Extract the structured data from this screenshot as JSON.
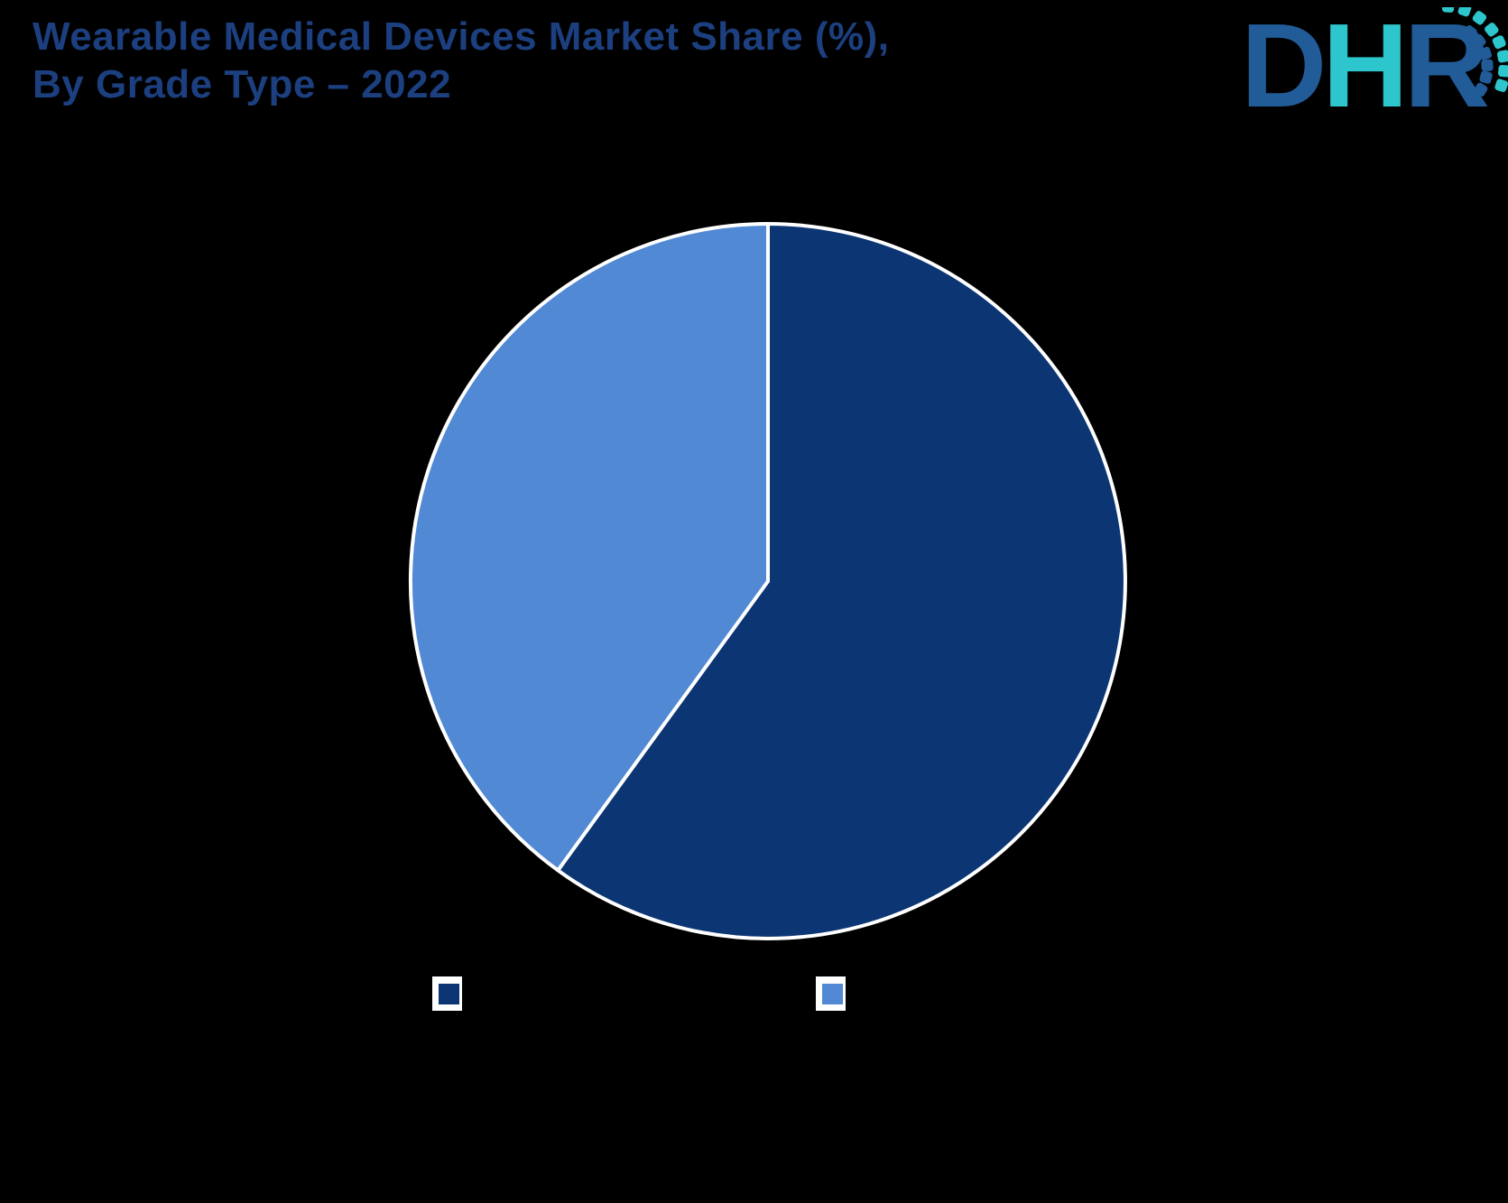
{
  "page": {
    "background": "#000000"
  },
  "header": {
    "title_line1": "Wearable Medical Devices Market Share (%),",
    "title_line2": "By Grade Type – 2022",
    "title_color": "#1c3f7f"
  },
  "logo": {
    "text": "DHR",
    "letters": [
      {
        "char": "D",
        "color": "#215c99"
      },
      {
        "char": "H",
        "color": "#2ec6cd"
      },
      {
        "char": "R",
        "color": "#215c99"
      }
    ],
    "dot_colors": {
      "outer": "#2ec6cd",
      "inner": "#215c99"
    },
    "dots": [
      {
        "ring": "outer",
        "angle": 4
      },
      {
        "ring": "outer",
        "angle": 20
      },
      {
        "ring": "outer",
        "angle": 36
      },
      {
        "ring": "outer",
        "angle": 52
      },
      {
        "ring": "outer",
        "angle": 66
      },
      {
        "ring": "outer",
        "angle": 80
      },
      {
        "ring": "outer",
        "angle": 94
      },
      {
        "ring": "outer",
        "angle": 108
      },
      {
        "ring": "inner",
        "angle": 37
      },
      {
        "ring": "inner",
        "angle": 54
      },
      {
        "ring": "inner",
        "angle": 72
      },
      {
        "ring": "inner",
        "angle": 88
      },
      {
        "ring": "inner",
        "angle": 104
      },
      {
        "ring": "inner",
        "angle": 122
      }
    ]
  },
  "chart_data": {
    "type": "pie",
    "title": "Wearable Medical Devices Market Share (%), By Grade Type – 2022",
    "series": [
      {
        "name": "",
        "value": 60,
        "color": "#0c3574"
      },
      {
        "name": "",
        "value": 40,
        "color": "#5289d4"
      }
    ],
    "start_angle_deg": 0,
    "direction": "clockwise",
    "slice_outline_color": "#ffffff",
    "data_labels_visible": false,
    "legend_position": "bottom"
  },
  "legend": {
    "items": [
      {
        "label": "",
        "swatch_color": "#0c3574",
        "swatch_bg": "#ffffff"
      },
      {
        "label": "",
        "swatch_color": "#5289d4",
        "swatch_bg": "#ffffff"
      }
    ]
  }
}
